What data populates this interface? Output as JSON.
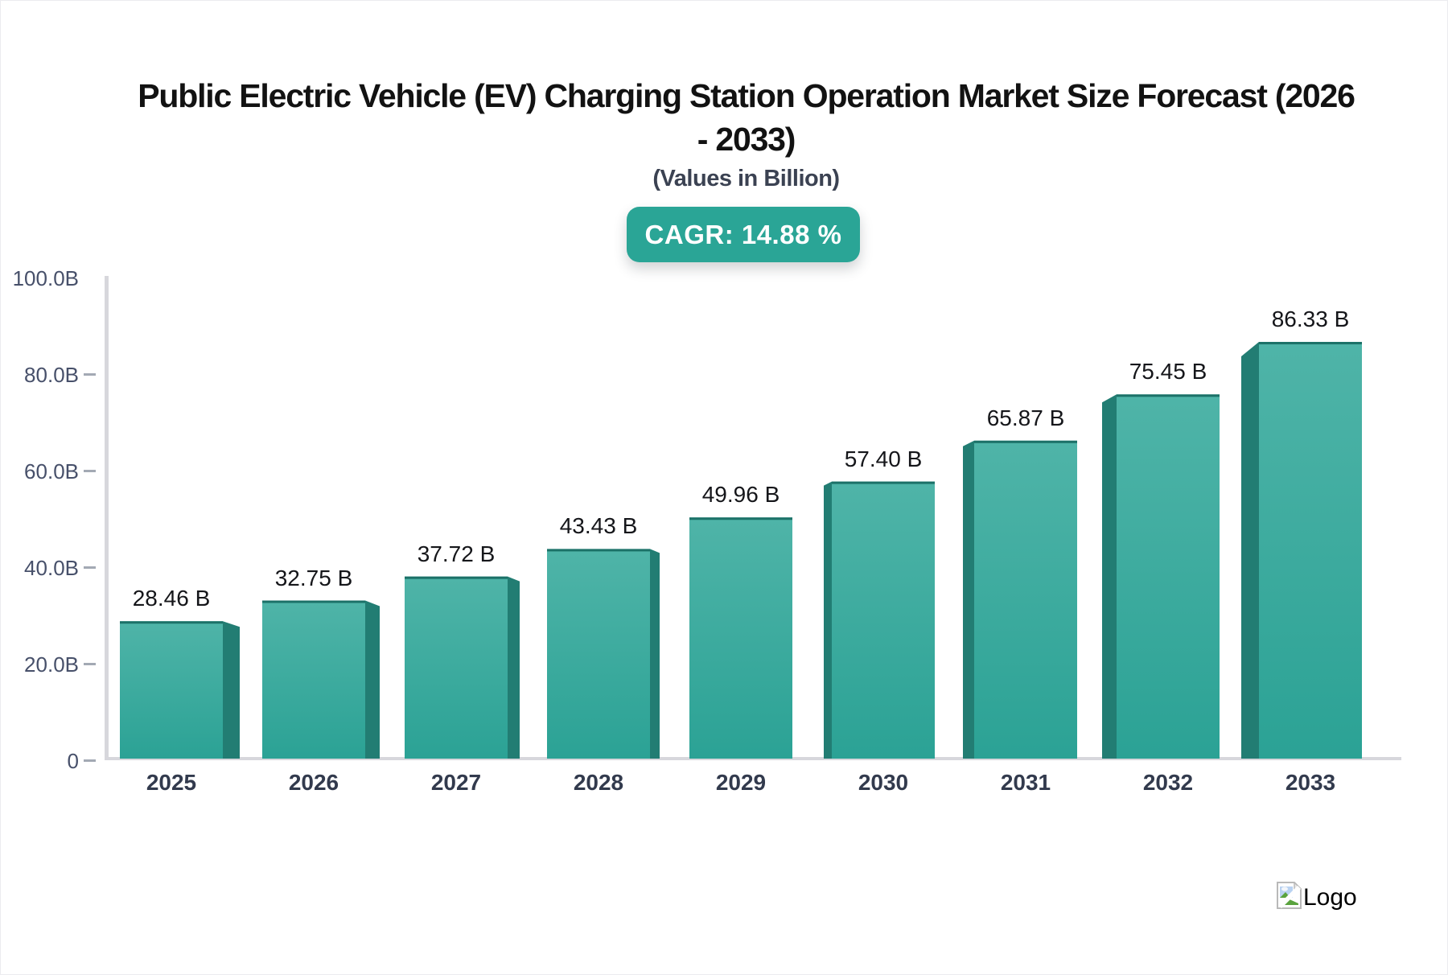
{
  "header": {
    "title_line1": "Public Electric Vehicle (EV) Charging Station Operation Market Size Forecast (2026",
    "title_line2": "- 2033)",
    "subtitle": "(Values in Billion)",
    "cagr_label": "CAGR: 14.88 %"
  },
  "chart_data": {
    "type": "bar",
    "title": "Public Electric Vehicle (EV) Charging Station Operation Market Size Forecast (2026 - 2033)",
    "subtitle": "(Values in Billion)",
    "cagr": "14.88%",
    "categories": [
      "2025",
      "2026",
      "2027",
      "2028",
      "2029",
      "2030",
      "2031",
      "2032",
      "2033"
    ],
    "values": [
      28.46,
      32.75,
      37.72,
      43.43,
      49.96,
      57.4,
      65.87,
      75.45,
      86.33
    ],
    "value_labels": [
      "28.46 B",
      "32.75 B",
      "37.72 B",
      "43.43 B",
      "49.96 B",
      "57.40 B",
      "65.87 B",
      "75.45 B",
      "86.33 B"
    ],
    "unit": "Billion",
    "xlabel": "",
    "ylabel": "",
    "ylim": [
      0,
      100
    ],
    "grid": false,
    "legend": false,
    "y_ticks": [
      {
        "label": "100.0B",
        "value": 100,
        "dash": false
      },
      {
        "label": "80.0B",
        "value": 80,
        "dash": true
      },
      {
        "label": "60.0B",
        "value": 60,
        "dash": true
      },
      {
        "label": "40.0B",
        "value": 40,
        "dash": true
      },
      {
        "label": "20.0B",
        "value": 20,
        "dash": true
      },
      {
        "label": "0",
        "value": 0,
        "dash": true
      }
    ],
    "colors": {
      "bar_front_top": "#4fb4a8",
      "bar_front_bottom": "#2ba295",
      "bar_top_edge": "#1c7168",
      "bar_side": "#227d73",
      "accent_badge": "#2aa596",
      "axis": "#d7d7dc"
    }
  },
  "footer": {
    "logo_alt": "Logo"
  }
}
